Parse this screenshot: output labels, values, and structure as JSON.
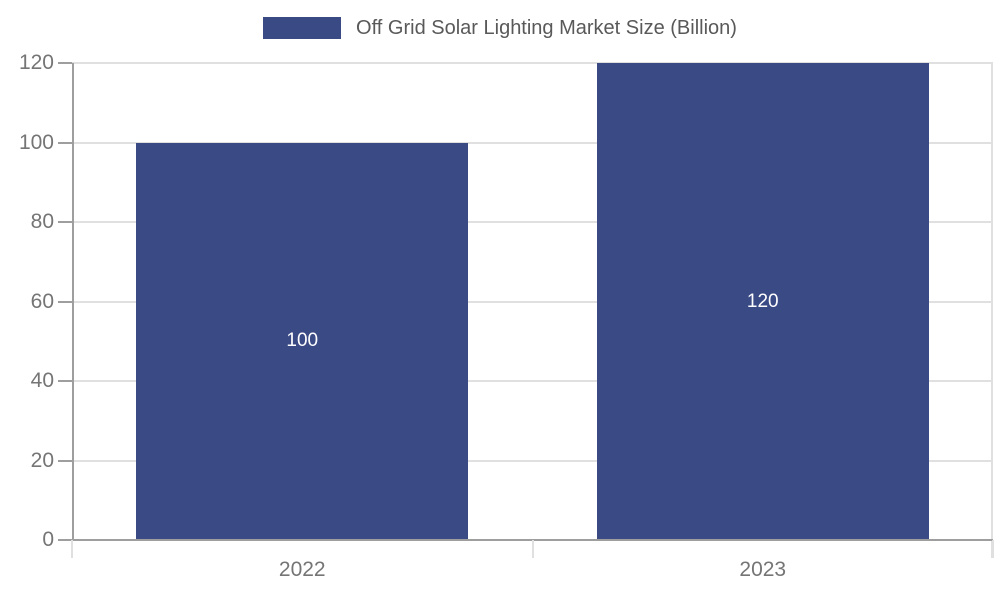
{
  "chart_data": {
    "type": "bar",
    "categories": [
      "2022",
      "2023"
    ],
    "values": [
      100,
      120
    ],
    "bar_labels": [
      "100",
      "120"
    ],
    "series_name": "Off Grid Solar Lighting Market Size (Billion)",
    "title": "",
    "xlabel": "",
    "ylabel": "",
    "ylim": [
      0,
      120
    ],
    "yticks": [
      0,
      20,
      40,
      60,
      80,
      100,
      120
    ],
    "grid": true,
    "legend_position": "top-center",
    "colors": {
      "bar": "#3A4A85",
      "bar_label": "#FFFFFF",
      "tick_label": "#757575",
      "legend_text": "#595959",
      "grid_line": "#E0E0E0",
      "axis_line": "#9E9E9E"
    }
  }
}
